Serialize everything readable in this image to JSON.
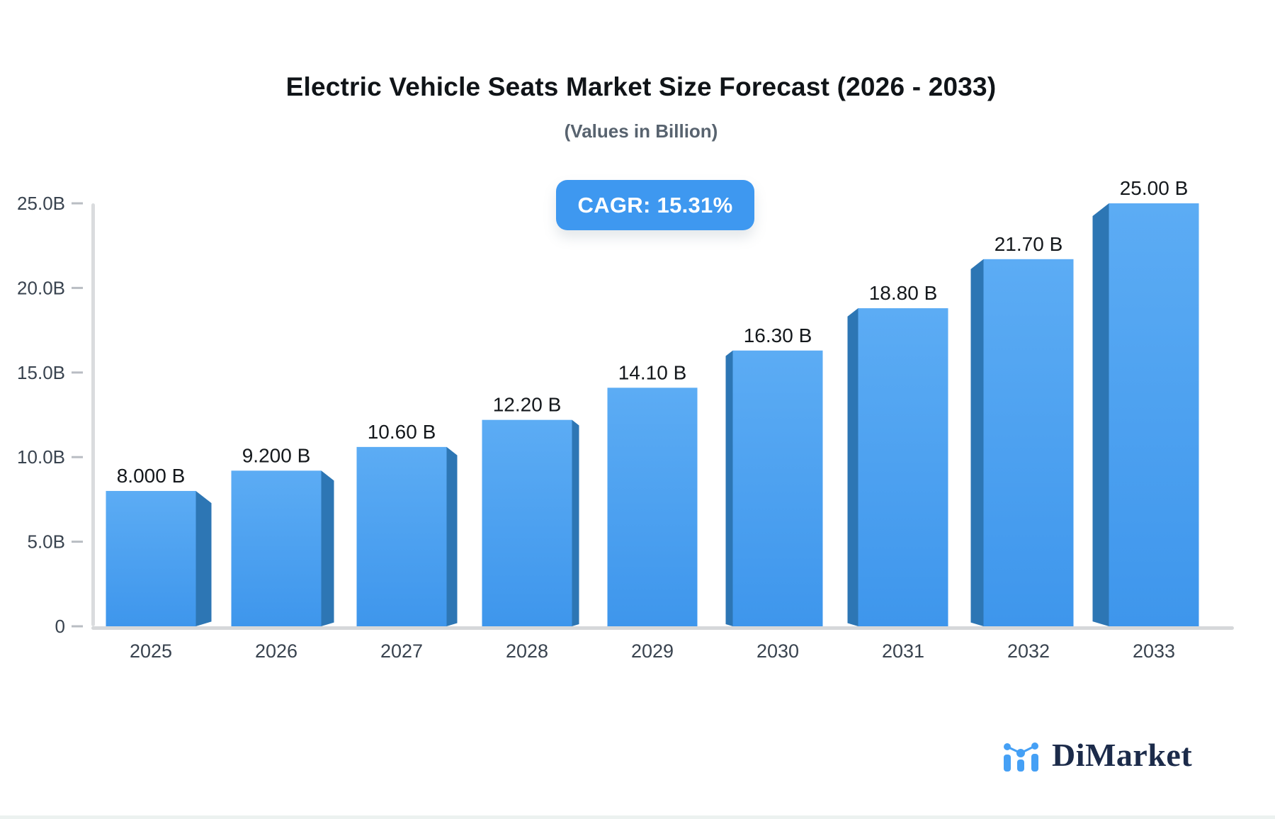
{
  "header": {
    "title": "Electric Vehicle Seats Market Size Forecast (2026 - 2033)",
    "subtitle": "(Values in Billion)",
    "cagr_badge": "CAGR: 15.31%"
  },
  "chart_data": {
    "type": "bar",
    "title": "Electric Vehicle Seats Market Size Forecast (2026 - 2033)",
    "subtitle": "(Values in Billion)",
    "unit": "Billion",
    "cagr": "15.31%",
    "categories": [
      "2025",
      "2026",
      "2027",
      "2028",
      "2029",
      "2030",
      "2031",
      "2032",
      "2033"
    ],
    "values": [
      8.0,
      9.2,
      10.6,
      12.2,
      14.1,
      16.3,
      18.8,
      21.7,
      25.0
    ],
    "value_labels": [
      "8.000 B",
      "9.200 B",
      "10.60 B",
      "12.20 B",
      "14.10 B",
      "16.30 B",
      "18.80 B",
      "21.70 B",
      "25.00 B"
    ],
    "xlabel": "",
    "ylabel": "",
    "ylim": [
      0,
      25
    ],
    "ytick_values": [
      0,
      5,
      10,
      15,
      20,
      25
    ],
    "ytick_labels": [
      "0",
      "5.0B",
      "10.0B",
      "15.0B",
      "20.0B",
      "25.0B"
    ],
    "grid": false,
    "legend": "none",
    "style": "3d-columns"
  },
  "branding": {
    "logo_text": "DiMarket"
  },
  "colors": {
    "accent_blue": "#3E98F0",
    "bar_face_top": "#5CACF4",
    "bar_face_bottom": "#3E96EC",
    "bar_side": "#2D76B4",
    "axis_line": "#DADCDE",
    "baseline": "#D6D8DA",
    "tick": "#B9BDC3",
    "axis_text": "#39434F",
    "value_text": "#14181C",
    "title_text": "#101418",
    "subtitle_text": "#58636F",
    "logo_navy": "#1C2B4A",
    "logo_blue": "#45A0F5"
  }
}
